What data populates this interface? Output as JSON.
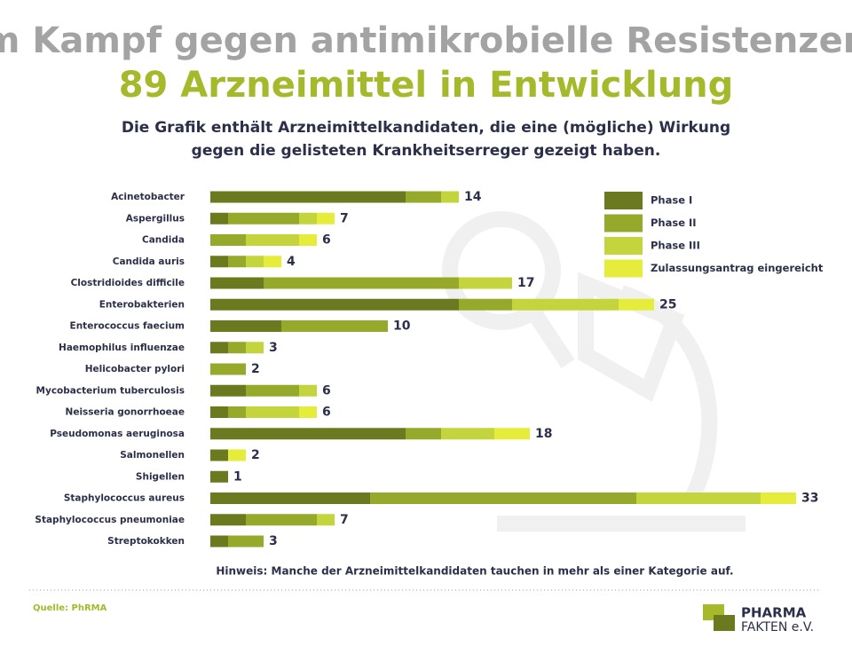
{
  "chart_data": {
    "type": "stacked-bar-horizontal",
    "title": [
      "Im Kampf gegen antimikrobielle Resistenzen:",
      "89 Arzneimittel in Entwicklung"
    ],
    "subtitle": [
      "Die Grafik enthält Arzneimittelkandidaten, die eine (mögliche) Wirkung",
      "gegen die gelisteten Krankheitserreger gezeigt haben."
    ],
    "categories": [
      "Acinetobacter",
      "Aspergillus",
      "Candida",
      "Candida auris",
      "Clostridioides difficile",
      "Enterobakterien",
      "Enterococcus faecium",
      "Haemophilus influenzae",
      "Helicobacter pylori",
      "Mycobacterium tuberculosis",
      "Neisseria gonorrhoeae",
      "Pseudomonas aeruginosa",
      "Salmonellen",
      "Shigellen",
      "Staphylococcus aureus",
      "Staphylococcus pneumoniae",
      "Streptokokken"
    ],
    "series": [
      {
        "name": "Phase I",
        "color": "#6b7a1e",
        "values": [
          11,
          1,
          0,
          1,
          3,
          14,
          4,
          1,
          0,
          2,
          1,
          11,
          1,
          1,
          9,
          2,
          1
        ]
      },
      {
        "name": "Phase II",
        "color": "#97a92b",
        "values": [
          2,
          4,
          2,
          1,
          11,
          3,
          6,
          1,
          2,
          3,
          1,
          2,
          0,
          0,
          15,
          4,
          2
        ]
      },
      {
        "name": "Phase III",
        "color": "#c4d43d",
        "values": [
          1,
          1,
          3,
          1,
          3,
          6,
          0,
          1,
          0,
          1,
          3,
          3,
          0,
          0,
          7,
          1,
          0
        ]
      },
      {
        "name": "Zulassungsantrag eingereicht",
        "color": "#e5ed3a",
        "values": [
          0,
          1,
          1,
          1,
          0,
          2,
          0,
          0,
          0,
          0,
          1,
          2,
          1,
          0,
          2,
          0,
          0
        ]
      }
    ],
    "totals": [
      14,
      7,
      6,
      4,
      17,
      25,
      10,
      3,
      2,
      6,
      6,
      18,
      2,
      1,
      33,
      7,
      3
    ],
    "legend": "top-right",
    "note": "Hinweis: Manche der Arzneimittelkandidaten tauchen in mehr als einer Kategorie auf.",
    "source": "Quelle: PhRMA",
    "logo": [
      "PHARMA",
      "FAKTEN e.V."
    ]
  }
}
